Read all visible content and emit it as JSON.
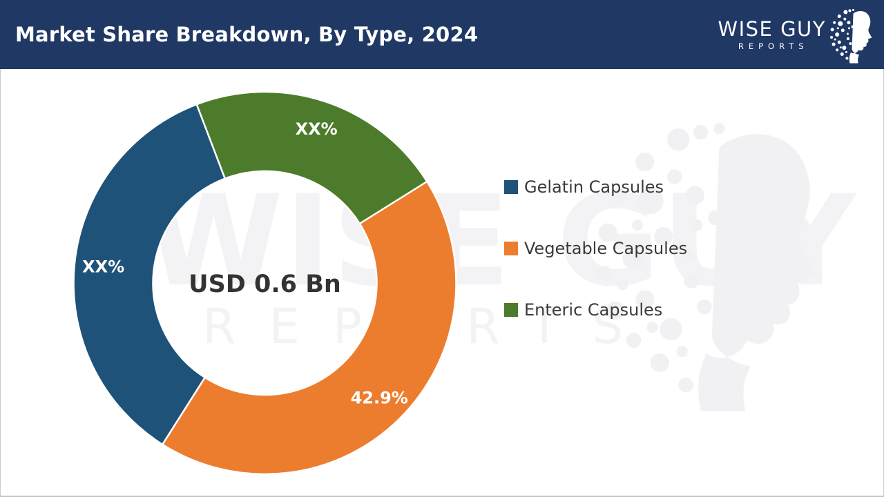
{
  "header": {
    "title": "Market Share Breakdown, By Type, 2024",
    "background_color": "#1f3864",
    "logo": {
      "line1": "WISE GUY",
      "line2": "REPORTS"
    }
  },
  "watermark": {
    "line1": "WISE GUY",
    "line2": "REPORTS"
  },
  "chart_data": {
    "type": "pie",
    "subtype": "donut",
    "title": "Market Share Breakdown, By Type, 2024",
    "center_label": "USD 0.6 Bn",
    "units": "percent share of USD 0.6 Bn",
    "start_angle_deg_clockwise_from_top": -20.9,
    "hole_ratio": 0.585,
    "legend_position": "right",
    "label_color": "#ffffff",
    "slices": [
      {
        "name": "Enteric Capsules",
        "value_pct": 21.9,
        "label": "XX%",
        "color": "#4d7b2c"
      },
      {
        "name": "Vegetable Capsules",
        "value_pct": 42.9,
        "label": "42.9%",
        "color": "#ed7d2e"
      },
      {
        "name": "Gelatin Capsules",
        "value_pct": 35.2,
        "label": "XX%",
        "color": "#1f5278"
      }
    ]
  },
  "legend": {
    "items": [
      {
        "label": "Gelatin Capsules",
        "color": "#1f5278"
      },
      {
        "label": "Vegetable Capsules",
        "color": "#ed7d2e"
      },
      {
        "label": "Enteric Capsules",
        "color": "#4d7b2c"
      }
    ]
  }
}
